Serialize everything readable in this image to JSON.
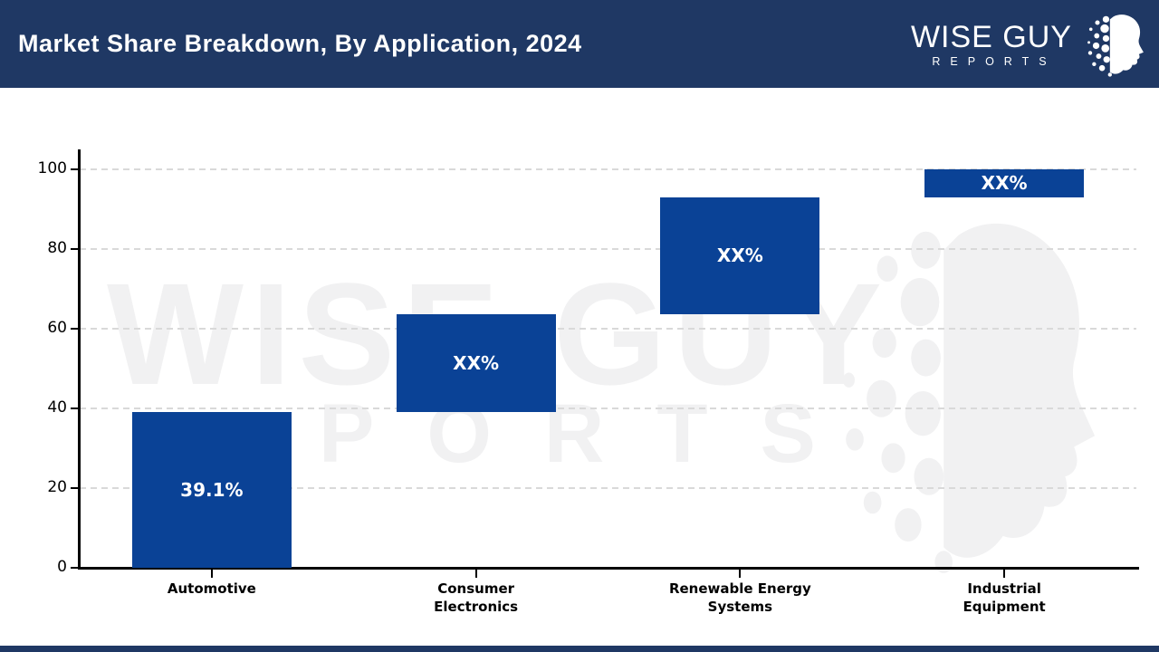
{
  "header": {
    "title": "Market Share Breakdown, By Application, 2024",
    "logo": {
      "line1": "WISE GUY",
      "line2": "REPORTS"
    }
  },
  "watermark": {
    "line1": "WISE GUY",
    "line2": "PORTS"
  },
  "colors": {
    "header_bg": "#1f3864",
    "bar": "#0a4296",
    "gridline": "#d9d9d9",
    "watermark": "#f1f1f2",
    "axis": "#000000",
    "bar_label_text": "#ffffff"
  },
  "chart_data": {
    "type": "bar",
    "subtype": "waterfall",
    "title": "Market Share Breakdown, By Application, 2024",
    "xlabel": "",
    "ylabel": "",
    "ylim": [
      0,
      105
    ],
    "yticks": [
      0,
      20,
      40,
      60,
      80,
      100
    ],
    "grid": "dashed-horizontal",
    "legend": "none",
    "categories": [
      "Automotive",
      "Consumer Electronics",
      "Renewable Energy Systems",
      "Industrial Equipment"
    ],
    "segments": [
      {
        "label": "Automotive",
        "label_lines": [
          "Automotive"
        ],
        "start": 0,
        "end": 39.1,
        "value_label": "39.1%",
        "value_pct": 39.1
      },
      {
        "label": "Consumer Electronics",
        "label_lines": [
          "Consumer",
          "Electronics"
        ],
        "start": 39.1,
        "end": 63.7,
        "value_label": "XX%",
        "value_pct": 24.6
      },
      {
        "label": "Renewable Energy Systems",
        "label_lines": [
          "Renewable Energy",
          "Systems"
        ],
        "start": 63.7,
        "end": 93.0,
        "value_label": "XX%",
        "value_pct": 29.3
      },
      {
        "label": "Industrial Equipment",
        "label_lines": [
          "Industrial",
          "Equipment"
        ],
        "start": 93.0,
        "end": 100,
        "value_label": "XX%",
        "value_pct": 7.0
      }
    ]
  }
}
